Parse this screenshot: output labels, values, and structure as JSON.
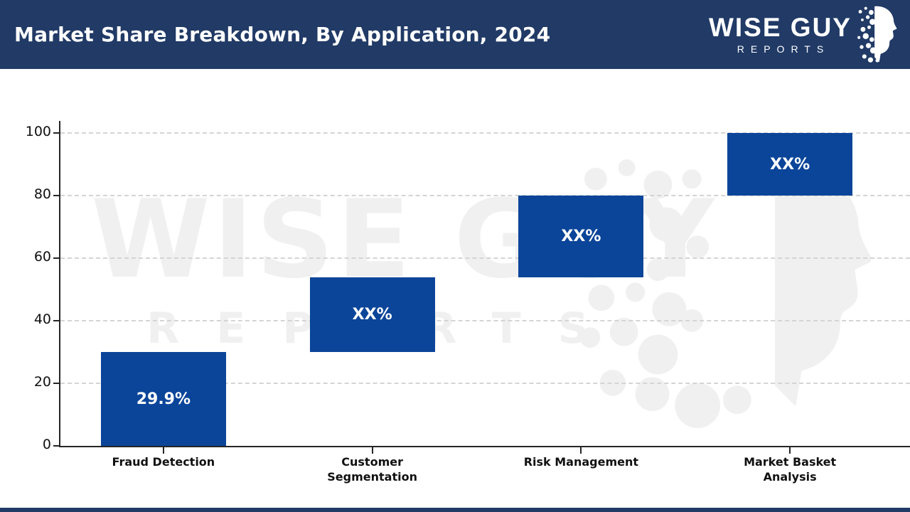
{
  "header": {
    "title": "Market Share Breakdown, By Application, 2024",
    "logo": {
      "line1": "WISE GUY",
      "line2": "REPORTS",
      "icon": "dotted-face-profile-icon"
    }
  },
  "watermark": {
    "line1": "WISE GUY",
    "line2": "REPORTS",
    "icon": "dotted-face-profile-watermark"
  },
  "colors": {
    "header_bg": "#213a66",
    "footer_bg": "#213a66",
    "bar_blue": "#0b4599",
    "grid_line": "#d4d4d4",
    "axis_line": "#262626",
    "tick_text": "#111111",
    "bar_label_text": "#ffffff",
    "watermark_gray": "#f0f0f0",
    "chart_bg": "#ffffff"
  },
  "chart_data": {
    "type": "bar",
    "subtype": "waterfall",
    "title": "Market Share Breakdown, By Application, 2024",
    "categories": [
      "Fraud Detection",
      "Customer Segmentation",
      "Risk Management",
      "Market Basket Analysis"
    ],
    "category_label_lines": [
      [
        "Fraud Detection"
      ],
      [
        "Customer",
        "Segmentation"
      ],
      [
        "Risk Management"
      ],
      [
        "Market Basket",
        "Analysis"
      ]
    ],
    "values": [
      29.9,
      24.0,
      26.1,
      20.0
    ],
    "cumulative_start": [
      0,
      29.9,
      53.9,
      80.0
    ],
    "cumulative_end": [
      29.9,
      53.9,
      80.0,
      100.0
    ],
    "bar_labels": [
      "29.9%",
      "XX%",
      "XX%",
      "XX%"
    ],
    "xlabel": "",
    "ylabel": "",
    "ylim": [
      0,
      100
    ],
    "yticks": [
      0,
      20,
      40,
      60,
      80,
      100
    ],
    "grid": "dashed-horizontal",
    "legend": "none"
  }
}
